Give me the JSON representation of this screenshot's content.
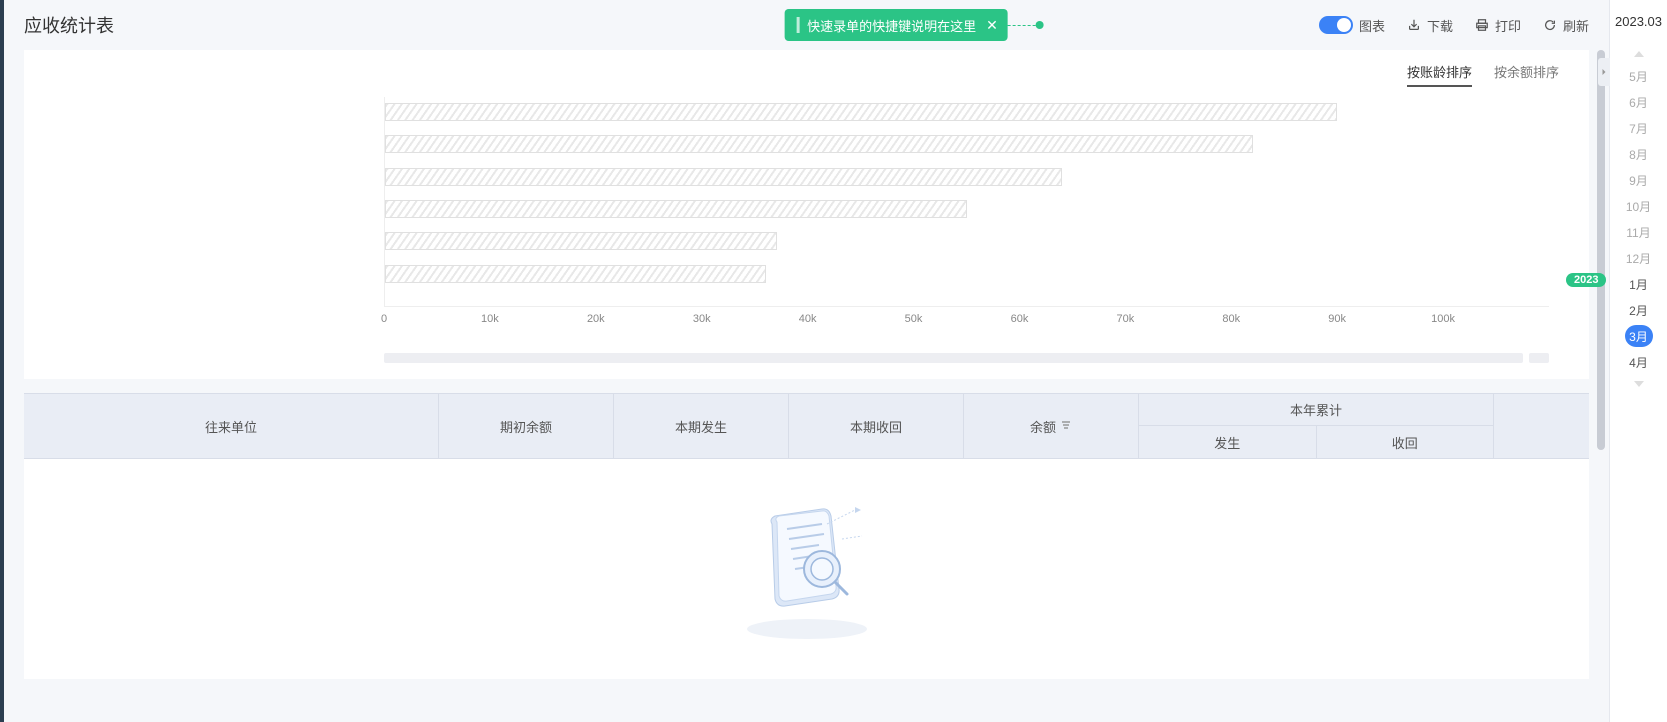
{
  "header": {
    "title": "应收统计表",
    "tip_banner": "快速录单的快捷键说明在这里",
    "toolbar": {
      "chart_label": "图表",
      "download_label": "下载",
      "print_label": "打印",
      "refresh_label": "刷新"
    }
  },
  "sort_tabs": {
    "by_age": "按账龄排序",
    "by_balance": "按余额排序",
    "active": "by_age"
  },
  "chart": {
    "type": "bar-horizontal",
    "x_max": 110000,
    "x_ticks": [
      {
        "v": 0,
        "label": "0"
      },
      {
        "v": 10000,
        "label": "10k"
      },
      {
        "v": 20000,
        "label": "20k"
      },
      {
        "v": 30000,
        "label": "30k"
      },
      {
        "v": 40000,
        "label": "40k"
      },
      {
        "v": 50000,
        "label": "50k"
      },
      {
        "v": 60000,
        "label": "60k"
      },
      {
        "v": 70000,
        "label": "70k"
      },
      {
        "v": 80000,
        "label": "80k"
      },
      {
        "v": 90000,
        "label": "90k"
      },
      {
        "v": 100000,
        "label": "100k"
      }
    ],
    "bars": [
      {
        "value": 90000
      },
      {
        "value": 82000
      },
      {
        "value": 64000
      },
      {
        "value": 55000
      },
      {
        "value": 37000
      },
      {
        "value": 36000
      }
    ],
    "bar_fill": "#e8e8e8",
    "bar_border": "#e0e0e0",
    "axis_color": "#eeeeee",
    "tick_color": "#888888"
  },
  "table": {
    "columns": {
      "unit": "往来单位",
      "opening": "期初余额",
      "period_occur": "本期发生",
      "period_recv": "本期收回",
      "balance": "余额",
      "year_group": "本年累计",
      "year_occur": "发生",
      "year_recv": "收回"
    },
    "widths": {
      "unit": 415,
      "opening": 175,
      "period_occur": 175,
      "period_recv": 175,
      "balance": 175,
      "year_group": 355
    }
  },
  "side": {
    "current_date": "2023.03",
    "year_badge": "2023",
    "months": [
      {
        "label": "5月",
        "cy": false,
        "active": false
      },
      {
        "label": "6月",
        "cy": false,
        "active": false
      },
      {
        "label": "7月",
        "cy": false,
        "active": false
      },
      {
        "label": "8月",
        "cy": false,
        "active": false
      },
      {
        "label": "9月",
        "cy": false,
        "active": false
      },
      {
        "label": "10月",
        "cy": false,
        "active": false
      },
      {
        "label": "11月",
        "cy": false,
        "active": false
      },
      {
        "label": "12月",
        "cy": false,
        "active": false
      },
      {
        "label": "1月",
        "cy": true,
        "active": false,
        "year_marker": true
      },
      {
        "label": "2月",
        "cy": true,
        "active": false
      },
      {
        "label": "3月",
        "cy": true,
        "active": true
      },
      {
        "label": "4月",
        "cy": true,
        "active": false
      }
    ]
  },
  "colors": {
    "accent_green": "#2bc486",
    "accent_blue": "#3b82f6",
    "bg": "#f5f7fa",
    "header_bg": "#e9edf5",
    "border": "#d8dde8"
  }
}
